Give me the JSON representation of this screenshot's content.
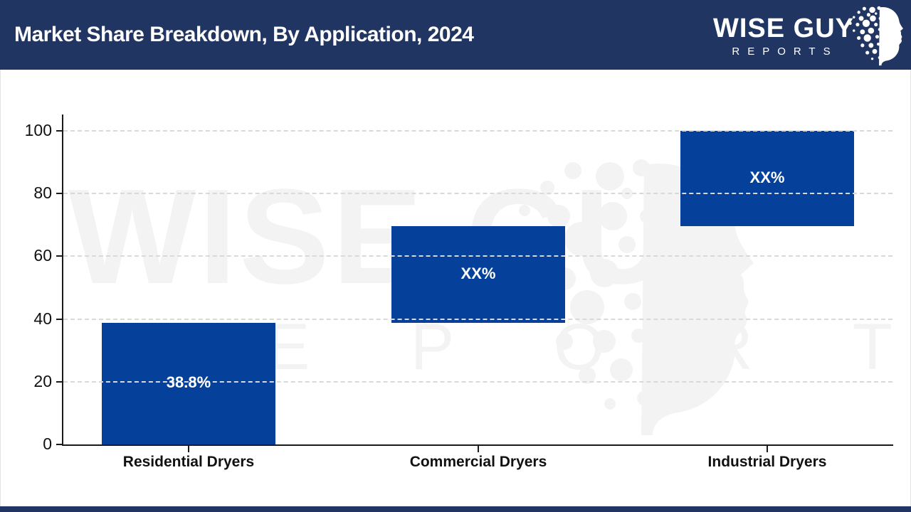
{
  "header": {
    "title": "Market Share Breakdown, By Application, 2024",
    "logo": {
      "line1": "WISE GUY",
      "line2": "REPORTS",
      "icon": "dotted-head-profile-icon"
    }
  },
  "watermark": {
    "line1": "WISE GU",
    "line2": "R E P O R T",
    "icon": "dotted-head-profile-icon"
  },
  "colors": {
    "header_navy": "#213563",
    "bar_blue": "#05419b",
    "gridline_gray": "#d9d9d9",
    "watermark_gray": "#f3f3f3",
    "axis_black": "#1a1a1a",
    "bar_label_white": "#ffffff"
  },
  "chart_data": {
    "type": "bar",
    "subtype": "stacked-waterfall-segments",
    "title": "Market Share Breakdown, By Application, 2024",
    "categories": [
      "Residential Dryers",
      "Commercial Dryers",
      "Industrial Dryers"
    ],
    "segments": [
      {
        "category": "Residential Dryers",
        "start": 0,
        "end": 38.8,
        "label": "38.8%"
      },
      {
        "category": "Commercial Dryers",
        "start": 38.8,
        "end": 69.6,
        "label": "XX%"
      },
      {
        "category": "Industrial Dryers",
        "start": 69.6,
        "end": 100,
        "label": "XX%"
      }
    ],
    "yticks": [
      0,
      20,
      40,
      60,
      80,
      100
    ],
    "ylim": [
      0,
      105
    ],
    "xlabel": "",
    "ylabel": "",
    "grid": "horizontal-dashed",
    "legend": "none",
    "bar_color": "#05419b",
    "value_label_color": "#ffffff"
  }
}
